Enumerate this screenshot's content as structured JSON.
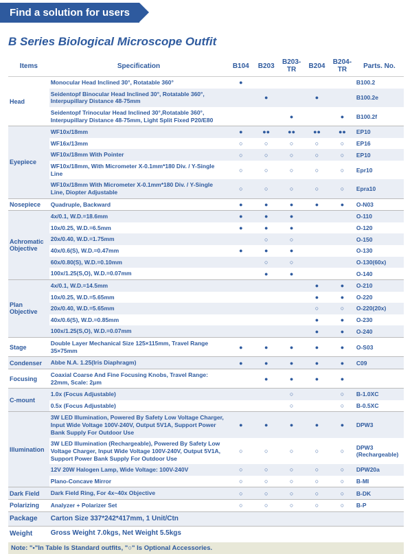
{
  "banner": "Find a solution for users",
  "title": "B Series Biological Microscope Outfit",
  "headers": {
    "items": "Items",
    "spec": "Specification",
    "models": [
      "B104",
      "B203",
      "B203-TR",
      "B204",
      "B204-TR"
    ],
    "parts": "Parts. No."
  },
  "groups": [
    {
      "label": "Head",
      "rows": [
        {
          "spec": "Monocular Head Inclined 30°, Rotatable 360°",
          "marks": [
            "●",
            "",
            "",
            "",
            ""
          ],
          "parts": "B100.2",
          "stripe": false
        },
        {
          "spec": "Seidentopf Binocular Head Inclined 30°, Rotatable 360°, Interpupillary Distance 48-75mm",
          "marks": [
            "",
            "●",
            "",
            "●",
            ""
          ],
          "parts": "B100.2e",
          "stripe": true
        },
        {
          "spec": "Seidentopf Trinocular Head Inclined 30°,Rotatable 360°, Interpupillary Distance 48-75mm, Light Split Fixed P20/E80",
          "marks": [
            "",
            "",
            "●",
            "",
            "●"
          ],
          "parts": "B100.2f",
          "stripe": false
        }
      ]
    },
    {
      "label": "Eyepiece",
      "rows": [
        {
          "spec": "WF10x/18mm",
          "marks": [
            "●",
            "●●",
            "●●",
            "●●",
            "●●"
          ],
          "parts": "EP10",
          "stripe": true
        },
        {
          "spec": "WF16x/13mm",
          "marks": [
            "○",
            "○",
            "○",
            "○",
            "○"
          ],
          "parts": "EP16",
          "stripe": false
        },
        {
          "spec": "WF10x/18mm With Pointer",
          "marks": [
            "○",
            "○",
            "○",
            "○",
            "○"
          ],
          "parts": "EP10",
          "stripe": true
        },
        {
          "spec": "WF10x/18mm, With Micrometer X-0.1mm*180 Div. / Y-Single Line",
          "marks": [
            "○",
            "○",
            "○",
            "○",
            "○"
          ],
          "parts": "Epr10",
          "stripe": false
        },
        {
          "spec": "WF10x/18mm With Micrometer X-0.1mm*180 Div. / Y-Single Line, Diopter Adjustable",
          "marks": [
            "○",
            "○",
            "○",
            "○",
            "○"
          ],
          "parts": "Epra10",
          "stripe": true
        }
      ]
    },
    {
      "label": "Nosepiece",
      "rows": [
        {
          "spec": "Quadruple, Backward",
          "marks": [
            "●",
            "●",
            "●",
            "●",
            "●"
          ],
          "parts": "O-N03",
          "stripe": false
        }
      ]
    },
    {
      "label": "Achromatic Objective",
      "rows": [
        {
          "spec": "4x/0.1, W.D.=18.6mm",
          "marks": [
            "●",
            "●",
            "●",
            "",
            ""
          ],
          "parts": "O-110",
          "stripe": true
        },
        {
          "spec": "10x/0.25, W.D.=6.5mm",
          "marks": [
            "●",
            "●",
            "●",
            "",
            ""
          ],
          "parts": "O-120",
          "stripe": false
        },
        {
          "spec": "20x/0.40, W.D.=1.75mm",
          "marks": [
            "",
            "○",
            "○",
            "",
            ""
          ],
          "parts": "O-150",
          "stripe": true
        },
        {
          "spec": "40x/0.6(S), W.D.=0.47mm",
          "marks": [
            "●",
            "●",
            "●",
            "",
            ""
          ],
          "parts": "O-130",
          "stripe": false
        },
        {
          "spec": "60x/0.80(S), W.D.=0.10mm",
          "marks": [
            "",
            "○",
            "○",
            "",
            ""
          ],
          "parts": "O-130(60x)",
          "stripe": true
        },
        {
          "spec": "100x/1.25(S,O), W.D.=0.07mm",
          "marks": [
            "",
            "●",
            "●",
            "",
            ""
          ],
          "parts": "O-140",
          "stripe": false
        }
      ]
    },
    {
      "label": "Plan Objective",
      "rows": [
        {
          "spec": "4x/0.1, W.D.=14.5mm",
          "marks": [
            "",
            "",
            "",
            "●",
            "●"
          ],
          "parts": "O-210",
          "stripe": true
        },
        {
          "spec": "10x/0.25, W.D.=5.65mm",
          "marks": [
            "",
            "",
            "",
            "●",
            "●"
          ],
          "parts": "O-220",
          "stripe": false
        },
        {
          "spec": "20x/0.40, W.D.=5.65mm",
          "marks": [
            "",
            "",
            "",
            "○",
            "○"
          ],
          "parts": "O-220(20x)",
          "stripe": true
        },
        {
          "spec": "40x/0.6(S), W.D.=0.85mm",
          "marks": [
            "",
            "",
            "",
            "●",
            "●"
          ],
          "parts": "O-230",
          "stripe": false
        },
        {
          "spec": "100x/1.25(S,O), W.D.=0.07mm",
          "marks": [
            "",
            "",
            "",
            "●",
            "●"
          ],
          "parts": "O-240",
          "stripe": true
        }
      ]
    },
    {
      "label": "Stage",
      "rows": [
        {
          "spec": "Double Layer Mechanical Size 125×115mm, Travel Range 35×75mm",
          "marks": [
            "●",
            "●",
            "●",
            "●",
            "●"
          ],
          "parts": "O-S03",
          "stripe": false
        }
      ]
    },
    {
      "label": "Condenser",
      "rows": [
        {
          "spec": "Abbe N.A. 1.25(Iris Diaphragm)",
          "marks": [
            "●",
            "●",
            "●",
            "●",
            "●"
          ],
          "parts": "C09",
          "stripe": true
        }
      ]
    },
    {
      "label": "Focusing",
      "rows": [
        {
          "spec": "Coaxial Coarse And Fine Focusing Knobs, Travel Range: 22mm, Scale: 2μm",
          "marks": [
            "",
            "●",
            "●",
            "●",
            "●"
          ],
          "parts": "",
          "stripe": false
        }
      ]
    },
    {
      "label": "C-mount",
      "rows": [
        {
          "spec": "1.0x (Focus Adjustable)",
          "marks": [
            "",
            "",
            "○",
            "",
            "○"
          ],
          "parts": "B-1.0XC",
          "stripe": true
        },
        {
          "spec": "0.5x (Focus Adjustable)",
          "marks": [
            "",
            "",
            "○",
            "",
            "○"
          ],
          "parts": "B-0.5XC",
          "stripe": false
        }
      ]
    },
    {
      "label": "Illumination",
      "rows": [
        {
          "spec": "3W LED Illumination, Powered By Safety Low Voltage Charger, Input Wide Voltage 100V-240V, Output 5V1A, Support Power Bank Supply For Outdoor Use",
          "marks": [
            "●",
            "●",
            "●",
            "●",
            "●"
          ],
          "parts": "DPW3",
          "stripe": true
        },
        {
          "spec": "3W LED Illumination (Rechargeable), Powered By Safety Low Voltage Charger, Input Wide Voltage 100V-240V, Output 5V1A, Support Power Bank Supply For Outdoor Use",
          "marks": [
            "○",
            "○",
            "○",
            "○",
            "○"
          ],
          "parts": "DPW3 (Rechargeable)",
          "stripe": false
        },
        {
          "spec": "12V 20W Halogen Lamp, Wide Voltage: 100V-240V",
          "marks": [
            "○",
            "○",
            "○",
            "○",
            "○"
          ],
          "parts": "DPW20a",
          "stripe": true
        },
        {
          "spec": "Plano-Concave Mirror",
          "marks": [
            "○",
            "○",
            "○",
            "○",
            "○"
          ],
          "parts": "B-MI",
          "stripe": false
        }
      ]
    },
    {
      "label": "Dark Field",
      "rows": [
        {
          "spec": "Dark Field Ring, For 4x~40x Objective",
          "marks": [
            "○",
            "○",
            "○",
            "○",
            "○"
          ],
          "parts": "B-DK",
          "stripe": true
        }
      ]
    },
    {
      "label": "Polarizing",
      "rows": [
        {
          "spec": "Analyzer + Polarizer Set",
          "marks": [
            "○",
            "○",
            "○",
            "○",
            "○"
          ],
          "parts": "B-P",
          "stripe": false
        }
      ]
    }
  ],
  "footer": [
    {
      "label": "Package",
      "spec": "Carton Size 337*242*417mm, 1 Unit/Ctn",
      "stripe": true
    },
    {
      "label": "Weight",
      "spec": "Gross Weight 7.0kgs, Net Weight 5.5kgs",
      "stripe": false
    }
  ],
  "note": "Note: \"•\"In Table Is Standard outfits, \"○\" Is Optional Accessories."
}
